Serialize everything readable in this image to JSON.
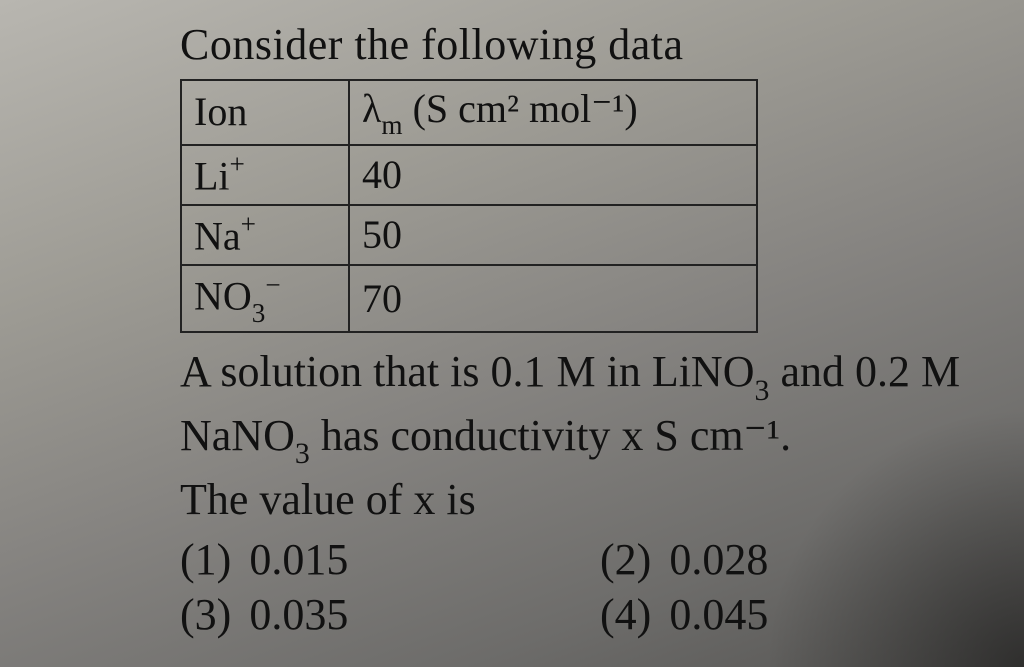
{
  "intro": "Consider the following data",
  "table": {
    "header": {
      "ion": "Ion",
      "lambda_label": "λ",
      "lambda_sub": "m",
      "unit": " (S cm² mol⁻¹)"
    },
    "rows": [
      {
        "ion_base": "Li",
        "ion_charge": "+",
        "value": "40"
      },
      {
        "ion_base": "Na",
        "ion_charge": "+",
        "value": "50"
      },
      {
        "ion_base": "NO",
        "ion_sub": "3",
        "ion_charge": "−",
        "value": "70"
      }
    ]
  },
  "body_line1_a": "A solution that is 0.1 M in LiNO",
  "body_line1_sub": "3",
  "body_line1_b": " and 0.2 M",
  "body_line2_a": "NaNO",
  "body_line2_sub": "3",
  "body_line2_b": " has conductivity x S cm⁻¹.",
  "body_line3": "The value of x is",
  "options": [
    {
      "num": "(1)",
      "val": "0.015"
    },
    {
      "num": "(2)",
      "val": "0.028"
    },
    {
      "num": "(3)",
      "val": "0.035"
    },
    {
      "num": "(4)",
      "val": "0.045"
    }
  ],
  "colors": {
    "text": "#111111",
    "border": "#222222"
  }
}
